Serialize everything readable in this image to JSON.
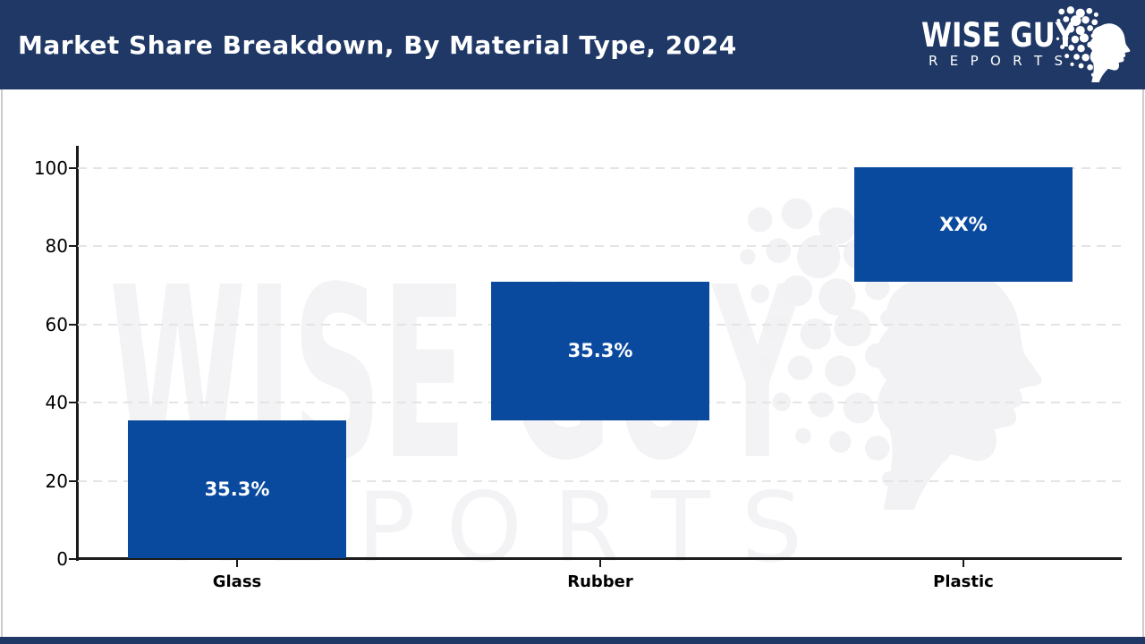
{
  "header": {
    "title": "Market Share Breakdown, By Material Type, 2024"
  },
  "logo": {
    "line1": "WISE GUY",
    "line2": "R E P O R T S"
  },
  "watermark": {
    "line1": "WISE GUY",
    "line2": "R E P O R T S"
  },
  "colors": {
    "header_bg": "#1f3865",
    "bar": "#0a4a9e",
    "bar_label": "#ffffff",
    "watermark": "#f2f2f4",
    "gridline": "#e4e4e4",
    "axis": "#1a1a1a",
    "title_text": "#ffffff"
  },
  "chart_data": {
    "type": "bar",
    "subtype": "floating-segment (waterfall style)",
    "title": "Market Share Breakdown, By Material Type, 2024",
    "categories": [
      "Glass",
      "Rubber",
      "Plastic"
    ],
    "bars": [
      {
        "category": "Glass",
        "label": "35.3%",
        "start": 0,
        "end": 35.3
      },
      {
        "category": "Rubber",
        "label": "35.3%",
        "start": 35.3,
        "end": 70.6
      },
      {
        "category": "Plastic",
        "label": "XX%",
        "start": 70.6,
        "end": 100
      }
    ],
    "yticks": [
      0,
      20,
      40,
      60,
      80,
      100
    ],
    "ylim": [
      0,
      105
    ],
    "xlabel": "",
    "ylabel": "",
    "grid": "horizontal dashed",
    "legend": "none"
  }
}
